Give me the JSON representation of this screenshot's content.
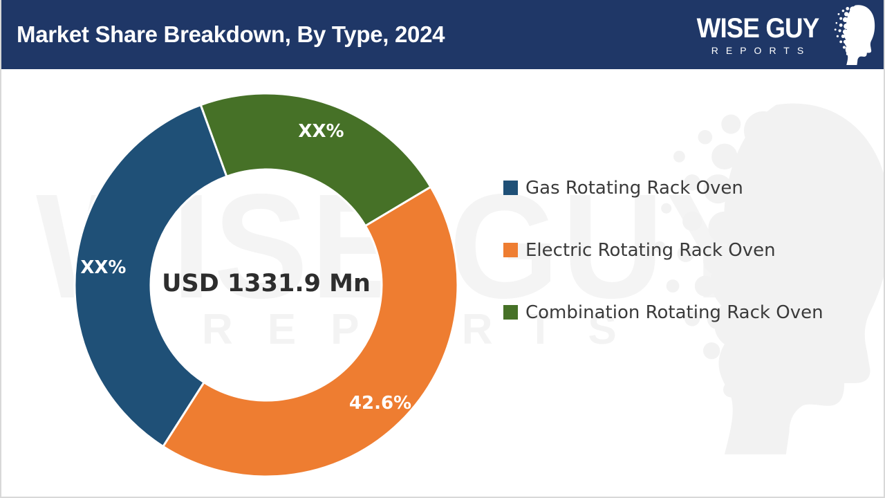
{
  "header": {
    "title": "Market Share Breakdown, By Type, 2024",
    "bg_color": "#1f3767",
    "logo": {
      "brand": "WISE GUY",
      "sub": "REPORTS"
    }
  },
  "chart_data": {
    "type": "donut",
    "title": "Market Share Breakdown, By Type, 2024",
    "center_label": "USD 1331.9 Mn",
    "start_angle_deg_cw_from_top": -20,
    "direction": "counterclockwise",
    "outer_radius_px": 277,
    "inner_radius_px": 167,
    "legend_position": "right",
    "slices": [
      {
        "name": "Gas Rotating Rack Oven",
        "display_label": "XX%",
        "value_pct": 35.4,
        "color": "#1f5077"
      },
      {
        "name": "Electric Rotating Rack Oven",
        "display_label": "42.6%",
        "value_pct": 42.6,
        "color": "#ee7d31"
      },
      {
        "name": "Combination Rotating Rack Oven",
        "display_label": "XX%",
        "value_pct": 22.0,
        "color": "#467127"
      }
    ]
  },
  "watermark": {
    "line1": "WISE GUY",
    "line2": "REPORTS"
  }
}
